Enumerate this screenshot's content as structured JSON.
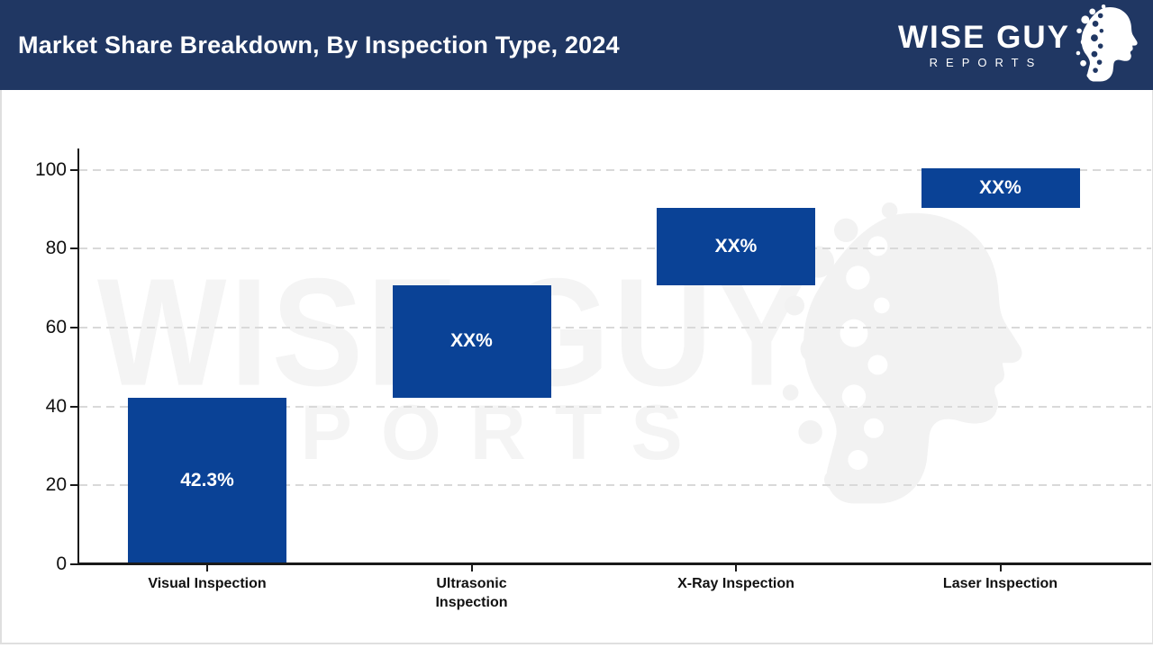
{
  "header": {
    "title": "Market Share Breakdown, By Inspection Type, 2024",
    "logo": {
      "line1": "WISE GUY",
      "line2": "REPORTS"
    }
  },
  "watermark": {
    "line1": "WISE GUY",
    "line2": "REPORTS"
  },
  "colors": {
    "header_bg": "#203763",
    "bar": "#0a4296",
    "bar_label": "#ffffff",
    "axis": "#1a1a1a",
    "gridline": "#d9d9d9",
    "watermark": "#f4f4f4",
    "border": "#dfdfdf"
  },
  "chart_data": {
    "type": "bar",
    "subtype": "floating-segment-bars",
    "title": "Market Share Breakdown, By Inspection Type, 2024",
    "categories": [
      "Visual Inspection",
      "Ultrasonic Inspection",
      "X-Ray Inspection",
      "Laser Inspection"
    ],
    "series": [
      {
        "name": "Market share (%)",
        "ranges": [
          [
            0,
            42.3
          ],
          [
            42.3,
            70.6
          ],
          [
            70.6,
            90.3
          ],
          [
            90.3,
            100.3
          ]
        ]
      }
    ],
    "bar_labels": [
      "42.3%",
      "XX%",
      "XX%",
      "XX%"
    ],
    "xlabel": "",
    "ylabel": "",
    "ylim": [
      0,
      105
    ],
    "yticks": [
      0,
      20,
      40,
      60,
      80,
      100
    ],
    "grid": "horizontal-dashed",
    "legend": "none"
  }
}
